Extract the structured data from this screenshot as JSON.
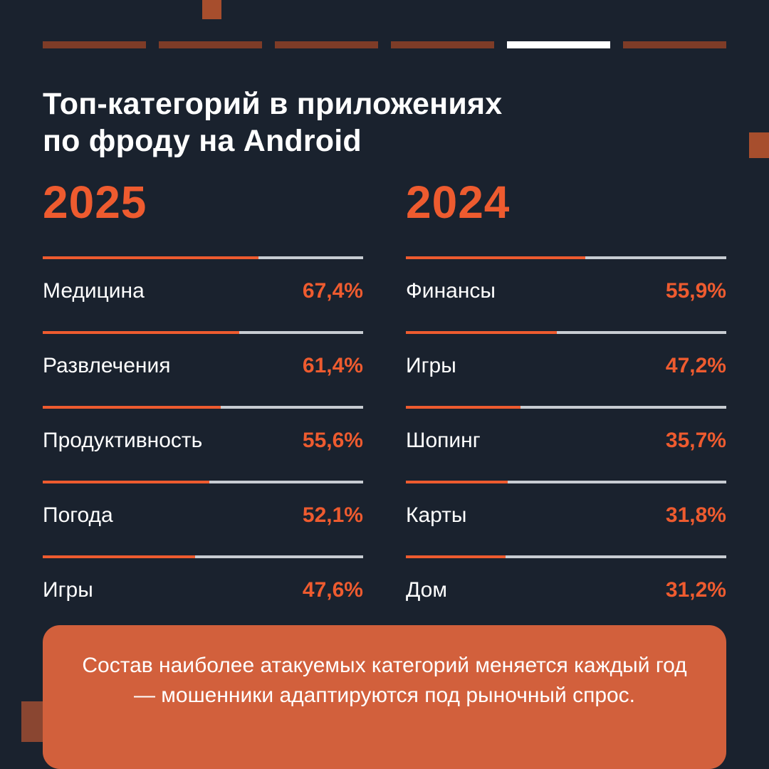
{
  "colors": {
    "background": "#1A222E",
    "accent_orange": "#EE5B2F",
    "bar_track": "#C7CCD2",
    "callout_background": "#D2603C",
    "progress_inactive": "#7E3C27",
    "progress_active": "#FFFFFF",
    "text": "#FFFFFF"
  },
  "progress": {
    "segments": 6,
    "active_index": 4
  },
  "title": {
    "line1": "Топ-категорий в приложениях",
    "line2": "по фроду на Android"
  },
  "columns": [
    {
      "year": "2025",
      "rows": [
        {
          "label": "Медицина",
          "value": "67,4%",
          "pct": 67.4
        },
        {
          "label": "Развлечения",
          "value": "61,4%",
          "pct": 61.4
        },
        {
          "label": "Продуктивность",
          "value": "55,6%",
          "pct": 55.6
        },
        {
          "label": "Погода",
          "value": "52,1%",
          "pct": 52.1
        },
        {
          "label": "Игры",
          "value": "47,6%",
          "pct": 47.6
        }
      ]
    },
    {
      "year": "2024",
      "rows": [
        {
          "label": "Финансы",
          "value": "55,9%",
          "pct": 55.9
        },
        {
          "label": "Игры",
          "value": "47,2%",
          "pct": 47.2
        },
        {
          "label": "Шопинг",
          "value": "35,7%",
          "pct": 35.7
        },
        {
          "label": "Карты",
          "value": "31,8%",
          "pct": 31.8
        },
        {
          "label": "Дом",
          "value": "31,2%",
          "pct": 31.2
        }
      ]
    }
  ],
  "callout": {
    "text": "Состав наиболее атакуемых категорий меняется каждый год — мошенники адаптируются под рыночный спрос."
  },
  "chart_data": [
    {
      "type": "bar",
      "title": "2025",
      "orientation": "horizontal",
      "categories": [
        "Медицина",
        "Развлечения",
        "Продуктивность",
        "Погода",
        "Игры"
      ],
      "values": [
        67.4,
        61.4,
        55.6,
        52.1,
        47.6
      ],
      "unit": "%",
      "xlim": [
        0,
        100
      ],
      "legend": "none",
      "grid": false
    },
    {
      "type": "bar",
      "title": "2024",
      "orientation": "horizontal",
      "categories": [
        "Финансы",
        "Игры",
        "Шопинг",
        "Карты",
        "Дом"
      ],
      "values": [
        55.9,
        47.2,
        35.7,
        31.8,
        31.2
      ],
      "unit": "%",
      "xlim": [
        0,
        100
      ],
      "legend": "none",
      "grid": false
    }
  ]
}
